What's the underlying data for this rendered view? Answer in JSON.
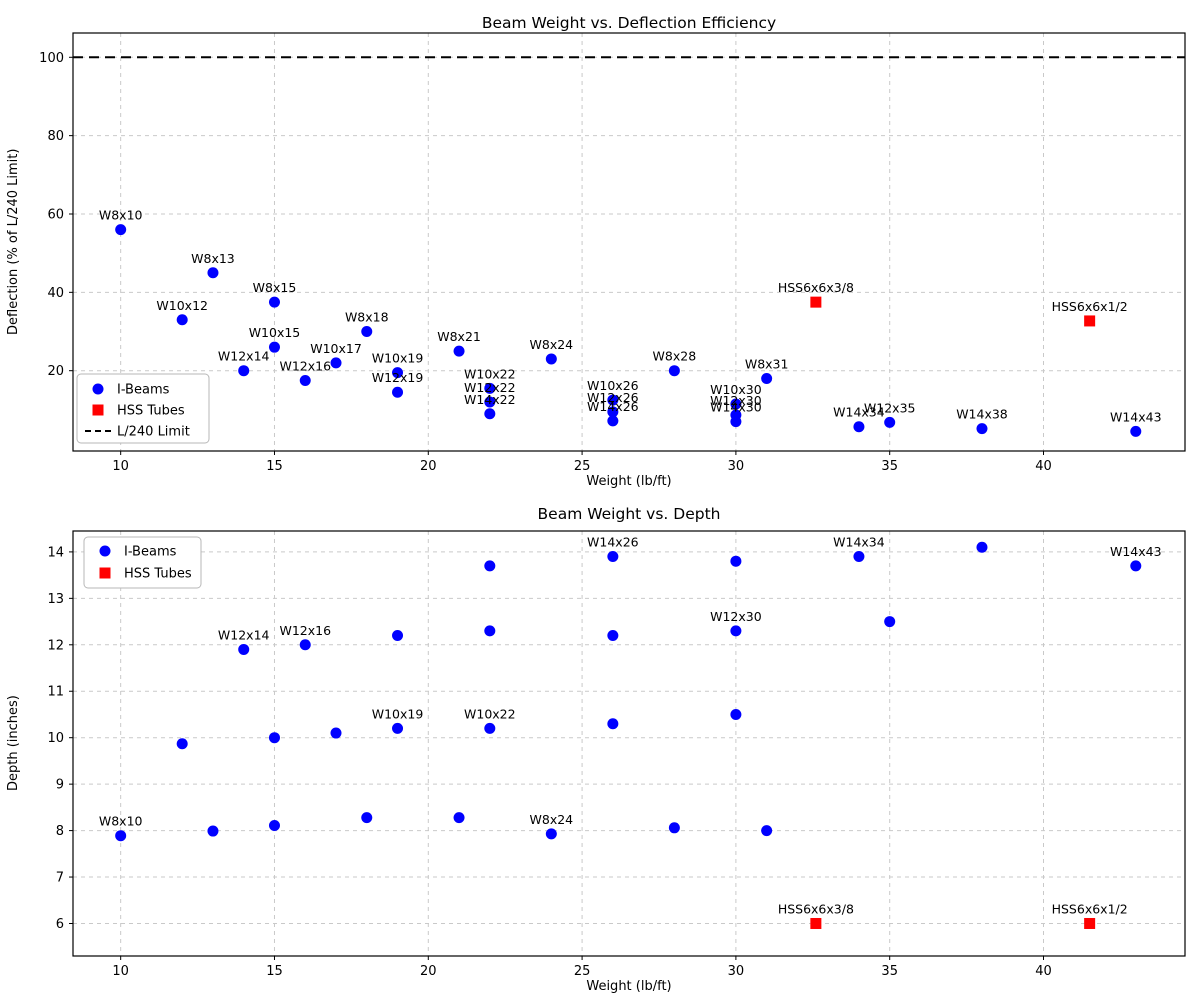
{
  "colors": {
    "ibeam": "#0000ff",
    "hss": "#ff0000",
    "limit_line": "#000000",
    "grid": "#c9c9c9",
    "axis": "#000000",
    "background": "#ffffff"
  },
  "chart_data": [
    {
      "type": "scatter",
      "title": "Beam Weight vs. Deflection Efficiency",
      "xlabel": "Weight (lb/ft)",
      "ylabel": "Deflection (% of L/240 Limit)",
      "xlim": [
        8.45,
        44.6
      ],
      "ylim": [
        -0.5,
        106.2
      ],
      "xticks": [
        10,
        15,
        20,
        25,
        30,
        35,
        40
      ],
      "yticks": [
        20,
        40,
        60,
        80,
        100
      ],
      "grid": true,
      "limit_line": {
        "y": 100,
        "label": "L/240 Limit"
      },
      "legend": {
        "position": "lower-left",
        "entries": [
          "I-Beams",
          "HSS Tubes",
          "L/240 Limit"
        ]
      },
      "series": [
        {
          "name": "I-Beams",
          "marker": "circle",
          "color": "#0000ff",
          "points": [
            {
              "label": "W8x10",
              "x": 10,
              "y": 56,
              "annotated": true
            },
            {
              "label": "W10x12",
              "x": 12,
              "y": 33,
              "annotated": true
            },
            {
              "label": "W8x13",
              "x": 13,
              "y": 45,
              "annotated": true
            },
            {
              "label": "W12x14",
              "x": 14,
              "y": 20,
              "annotated": true
            },
            {
              "label": "W8x15",
              "x": 15,
              "y": 37.5,
              "annotated": true
            },
            {
              "label": "W10x15",
              "x": 15,
              "y": 26,
              "annotated": true
            },
            {
              "label": "W12x16",
              "x": 16,
              "y": 17.5,
              "annotated": true
            },
            {
              "label": "W10x17",
              "x": 17,
              "y": 22,
              "annotated": true
            },
            {
              "label": "W8x18",
              "x": 18,
              "y": 30,
              "annotated": true
            },
            {
              "label": "W10x19",
              "x": 19,
              "y": 19.5,
              "annotated": true
            },
            {
              "label": "W12x19",
              "x": 19,
              "y": 14.5,
              "annotated": true
            },
            {
              "label": "W8x21",
              "x": 21,
              "y": 25,
              "annotated": true
            },
            {
              "label": "W10x22",
              "x": 22,
              "y": 15.5,
              "annotated": true
            },
            {
              "label": "W12x22",
              "x": 22,
              "y": 12,
              "annotated": true
            },
            {
              "label": "W14x22",
              "x": 22,
              "y": 9,
              "annotated": true
            },
            {
              "label": "W8x24",
              "x": 24,
              "y": 23,
              "annotated": true
            },
            {
              "label": "W10x26",
              "x": 26,
              "y": 12.5,
              "annotated": true
            },
            {
              "label": "W12x26",
              "x": 26,
              "y": 9.5,
              "annotated": true
            },
            {
              "label": "W14x26",
              "x": 26,
              "y": 7.2,
              "annotated": true
            },
            {
              "label": "W8x28",
              "x": 28,
              "y": 20,
              "annotated": true
            },
            {
              "label": "W10x30",
              "x": 30,
              "y": 11.5,
              "annotated": true
            },
            {
              "label": "W12x30",
              "x": 30,
              "y": 8.7,
              "annotated": true
            },
            {
              "label": "W14x30",
              "x": 30,
              "y": 7,
              "annotated": true
            },
            {
              "label": "W8x31",
              "x": 31,
              "y": 18,
              "annotated": true
            },
            {
              "label": "W14x34",
              "x": 34,
              "y": 5.7,
              "annotated": true
            },
            {
              "label": "W12x35",
              "x": 35,
              "y": 6.8,
              "annotated": true
            },
            {
              "label": "W14x38",
              "x": 38,
              "y": 5.2,
              "annotated": true
            },
            {
              "label": "W14x43",
              "x": 43,
              "y": 4.5,
              "annotated": true
            }
          ]
        },
        {
          "name": "HSS Tubes",
          "marker": "square",
          "color": "#ff0000",
          "points": [
            {
              "label": "HSS6x6x3/8",
              "x": 32.6,
              "y": 37.5,
              "annotated": true
            },
            {
              "label": "HSS6x6x1/2",
              "x": 41.5,
              "y": 32.7,
              "annotated": true
            }
          ]
        }
      ]
    },
    {
      "type": "scatter",
      "title": "Beam Weight vs. Depth",
      "xlabel": "Weight (lb/ft)",
      "ylabel": "Depth (inches)",
      "xlim": [
        8.45,
        44.6
      ],
      "ylim": [
        5.3,
        14.45
      ],
      "xticks": [
        10,
        15,
        20,
        25,
        30,
        35,
        40
      ],
      "yticks": [
        6,
        7,
        8,
        9,
        10,
        11,
        12,
        13,
        14
      ],
      "grid": true,
      "legend": {
        "position": "upper-left",
        "entries": [
          "I-Beams",
          "HSS Tubes"
        ]
      },
      "series": [
        {
          "name": "I-Beams",
          "marker": "circle",
          "color": "#0000ff",
          "points": [
            {
              "label": "W8x10",
              "x": 10,
              "y": 7.89,
              "annotated": true
            },
            {
              "label": "W10x12",
              "x": 12,
              "y": 9.87,
              "annotated": false
            },
            {
              "label": "W8x13",
              "x": 13,
              "y": 7.99,
              "annotated": false
            },
            {
              "label": "W12x14",
              "x": 14,
              "y": 11.9,
              "annotated": true
            },
            {
              "label": "W8x15",
              "x": 15,
              "y": 8.11,
              "annotated": false
            },
            {
              "label": "W10x15",
              "x": 15,
              "y": 10.0,
              "annotated": false
            },
            {
              "label": "W12x16",
              "x": 16,
              "y": 12.0,
              "annotated": true
            },
            {
              "label": "W10x17",
              "x": 17,
              "y": 10.1,
              "annotated": false
            },
            {
              "label": "W8x18",
              "x": 18,
              "y": 8.28,
              "annotated": false
            },
            {
              "label": "W10x19",
              "x": 19,
              "y": 10.2,
              "annotated": true
            },
            {
              "label": "W12x19",
              "x": 19,
              "y": 12.2,
              "annotated": false
            },
            {
              "label": "W8x21",
              "x": 21,
              "y": 8.28,
              "annotated": false
            },
            {
              "label": "W10x22",
              "x": 22,
              "y": 10.2,
              "annotated": true
            },
            {
              "label": "W12x22",
              "x": 22,
              "y": 12.3,
              "annotated": false
            },
            {
              "label": "W14x22",
              "x": 22,
              "y": 13.7,
              "annotated": false
            },
            {
              "label": "W8x24",
              "x": 24,
              "y": 7.93,
              "annotated": true
            },
            {
              "label": "W10x26",
              "x": 26,
              "y": 10.3,
              "annotated": false
            },
            {
              "label": "W12x26",
              "x": 26,
              "y": 12.2,
              "annotated": false
            },
            {
              "label": "W14x26",
              "x": 26,
              "y": 13.9,
              "annotated": true
            },
            {
              "label": "W8x28",
              "x": 28,
              "y": 8.06,
              "annotated": false
            },
            {
              "label": "W10x30",
              "x": 30,
              "y": 10.5,
              "annotated": false
            },
            {
              "label": "W12x30",
              "x": 30,
              "y": 12.3,
              "annotated": true
            },
            {
              "label": "W14x30",
              "x": 30,
              "y": 13.8,
              "annotated": false
            },
            {
              "label": "W8x31",
              "x": 31,
              "y": 8.0,
              "annotated": false
            },
            {
              "label": "W14x34",
              "x": 34,
              "y": 13.9,
              "annotated": true
            },
            {
              "label": "W12x35",
              "x": 35,
              "y": 12.5,
              "annotated": false
            },
            {
              "label": "W14x38",
              "x": 38,
              "y": 14.1,
              "annotated": false
            },
            {
              "label": "W14x43",
              "x": 43,
              "y": 13.7,
              "annotated": true
            }
          ]
        },
        {
          "name": "HSS Tubes",
          "marker": "square",
          "color": "#ff0000",
          "points": [
            {
              "label": "HSS6x6x3/8",
              "x": 32.6,
              "y": 6.0,
              "annotated": true
            },
            {
              "label": "HSS6x6x1/2",
              "x": 41.5,
              "y": 6.0,
              "annotated": true
            }
          ]
        }
      ]
    }
  ]
}
